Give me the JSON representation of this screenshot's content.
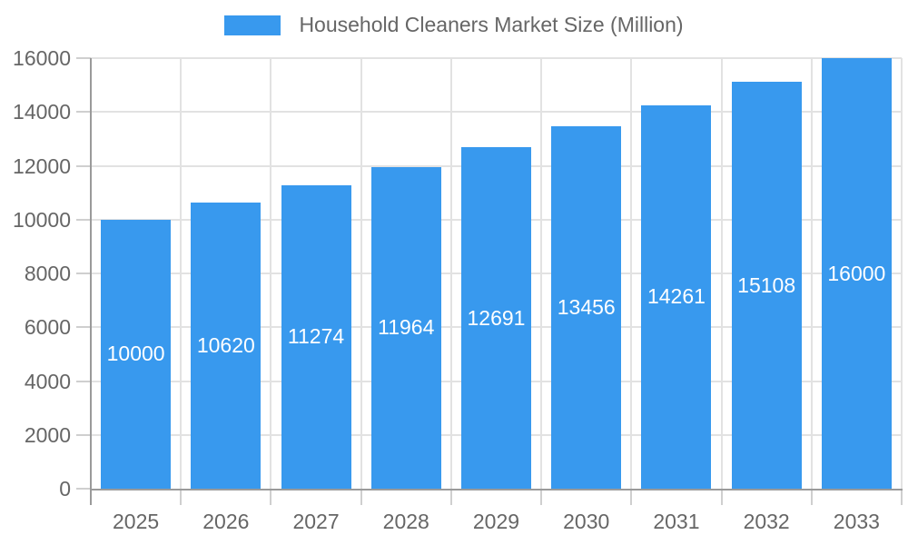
{
  "legend": {
    "label": "Household Cleaners Market Size (Million)"
  },
  "colors": {
    "bar": "#3899EE",
    "grid": "#E2E2E2",
    "axis": "#9A9A9A",
    "tick": "#CFCFCF",
    "text": "#666666",
    "bar_label": "#FFFFFF",
    "background": "#FFFFFF"
  },
  "chart_data": {
    "type": "bar",
    "title": "Household Cleaners Market Size (Million)",
    "categories": [
      "2025",
      "2026",
      "2027",
      "2028",
      "2029",
      "2030",
      "2031",
      "2032",
      "2033"
    ],
    "values": [
      10000,
      10620,
      11274,
      11964,
      12691,
      13456,
      14261,
      15108,
      16000
    ],
    "xlabel": "",
    "ylabel": "",
    "ylim": [
      0,
      16000
    ],
    "yticks": [
      0,
      2000,
      4000,
      6000,
      8000,
      10000,
      12000,
      14000,
      16000
    ],
    "grid": true,
    "legend_position": "top",
    "value_labels": "inside-center"
  }
}
